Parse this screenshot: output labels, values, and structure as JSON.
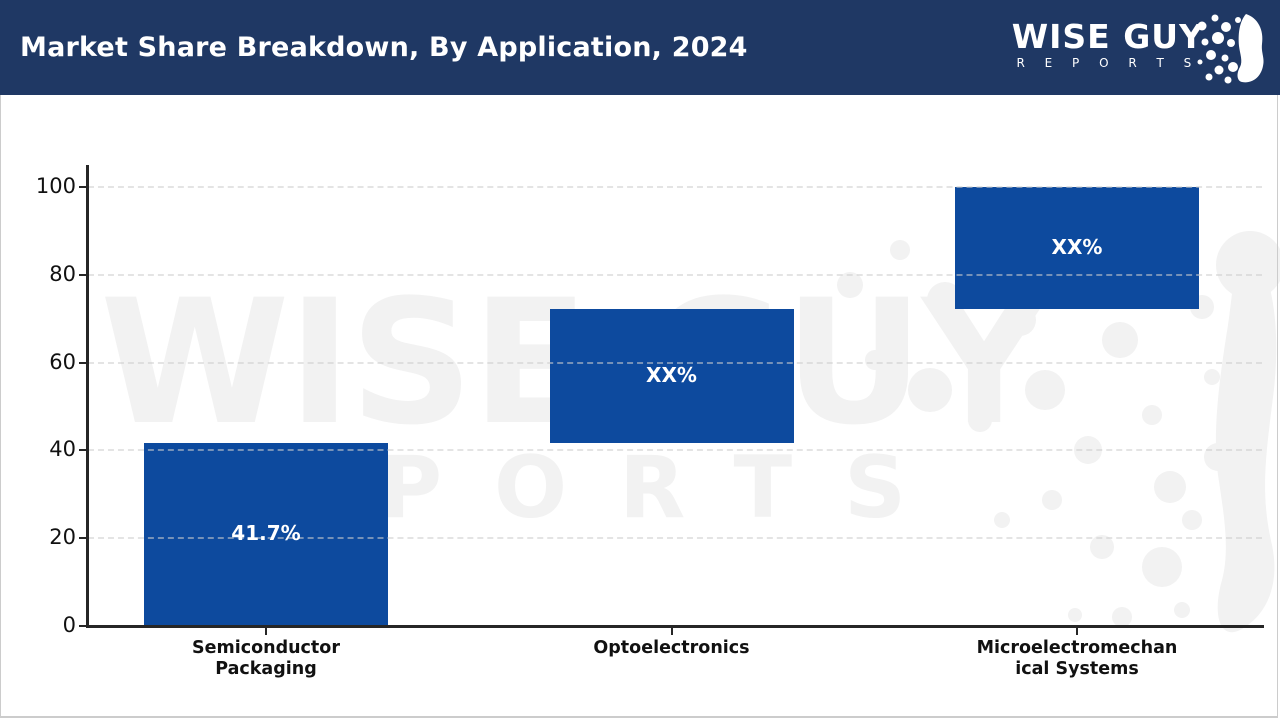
{
  "header": {
    "title": "Market Share Breakdown, By Application, 2024",
    "logo": {
      "line1": "WISE GUY",
      "line2": "R E P O R T S"
    }
  },
  "watermark": {
    "line1": "WISE GUY",
    "line2": "REPORTS"
  },
  "colors": {
    "header_bg": "#1f3864",
    "bar": "#0d4a9e",
    "bar_label_text": "#ffffff",
    "axis": "#262626",
    "gridline": "#d9d9d9",
    "watermark": "#f2f2f2",
    "frame_border": "#cccccc"
  },
  "chart_data": {
    "type": "bar",
    "subtype": "waterfall",
    "title": "Market Share Breakdown, By Application, 2024",
    "xlabel": "",
    "ylabel": "",
    "ylim": [
      0,
      100
    ],
    "yticks": [
      0,
      20,
      40,
      60,
      80,
      100
    ],
    "grid": "horizontal-dashed",
    "legend": "none",
    "categories": [
      [
        "Semiconductor",
        "Packaging"
      ],
      [
        "Optoelectronics"
      ],
      [
        "Microelectromechan",
        "ical Systems"
      ]
    ],
    "series": [
      {
        "name": "Market Share",
        "segments": [
          {
            "category": "Semiconductor Packaging",
            "start": 0,
            "end": 41.7,
            "label": "41.7%"
          },
          {
            "category": "Optoelectronics",
            "start": 41.7,
            "end": 72.2,
            "label": "XX%"
          },
          {
            "category": "Microelectromechanical Systems",
            "start": 72.2,
            "end": 100,
            "label": "XX%"
          }
        ]
      }
    ]
  }
}
